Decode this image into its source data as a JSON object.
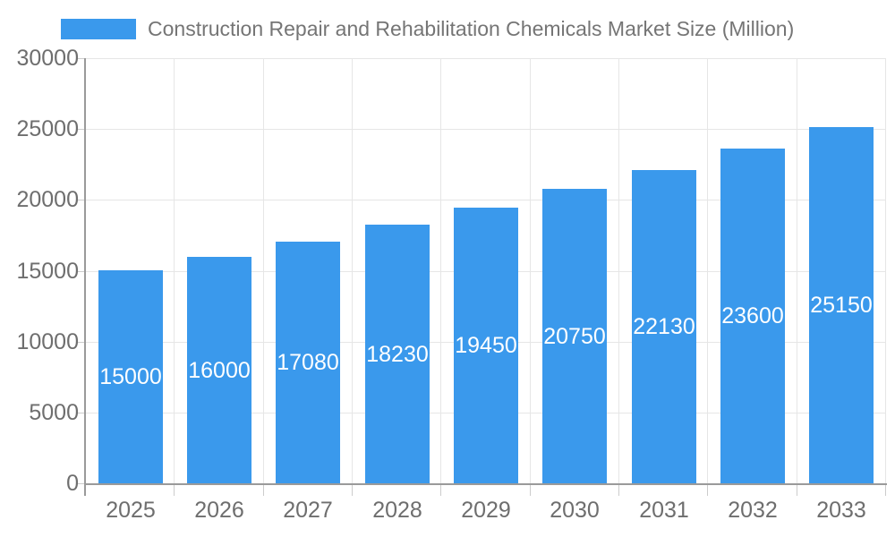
{
  "chart_data": {
    "type": "bar",
    "title": "Construction Repair and Rehabilitation Chemicals Market Size (Million)",
    "legend_entries": [
      "Construction Repair and Rehabilitation Chemicals Market Size (Million)"
    ],
    "legend_position": "top-left",
    "categories": [
      "2025",
      "2026",
      "2027",
      "2028",
      "2029",
      "2030",
      "2031",
      "2032",
      "2033"
    ],
    "values": [
      15000,
      16000,
      17080,
      18230,
      19450,
      20750,
      22130,
      23600,
      25150
    ],
    "bar_value_labels": [
      "15000",
      "16000",
      "17080",
      "18230",
      "19450",
      "20750",
      "22130",
      "23600",
      "25150"
    ],
    "xlabel": "",
    "ylabel": "",
    "ylim": [
      0,
      30000
    ],
    "yticks": [
      0,
      5000,
      10000,
      15000,
      20000,
      25000,
      30000
    ],
    "ytick_labels": [
      "0",
      "5000",
      "10000",
      "15000",
      "20000",
      "25000",
      "30000"
    ],
    "grid": true,
    "colors": {
      "bar": "#3a99ec",
      "bar_label": "#ffffff",
      "axis_text": "#6e6e6e",
      "legend_text": "#757575",
      "gridline": "#e6e6e6",
      "axis_line": "#9a9a9a",
      "tick": "#cccccc",
      "background": "#ffffff"
    }
  }
}
